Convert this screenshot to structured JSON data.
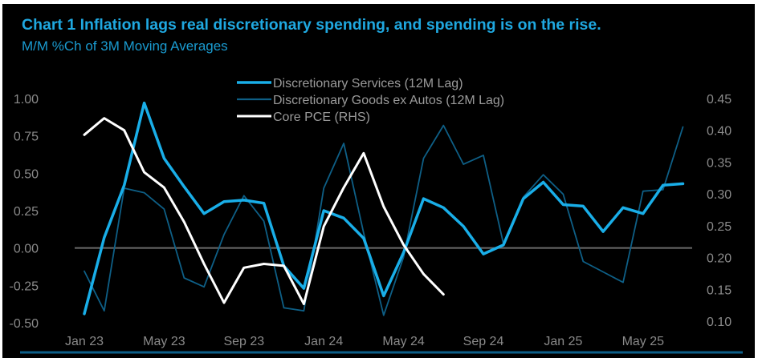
{
  "chart_data": {
    "type": "line",
    "title": "Chart 1 Inflation lags real discretionary spending, and spending is on the rise.",
    "subtitle": "M/M %Ch of 3M Moving Averages",
    "xlabel": "",
    "ylabel": "",
    "y2label": "",
    "x": [
      "Jan 23",
      "Feb 23",
      "Mar 23",
      "Apr 23",
      "May 23",
      "Jun 23",
      "Jul 23",
      "Aug 23",
      "Sep 23",
      "Oct 23",
      "Nov 23",
      "Dec 23",
      "Jan 24",
      "Feb 24",
      "Mar 24",
      "Apr 24",
      "May 24",
      "Jun 24",
      "Jul 24",
      "Aug 24",
      "Sep 24",
      "Oct 24",
      "Nov 24",
      "Dec 24",
      "Jan 25",
      "Feb 25",
      "Mar 25",
      "Apr 25",
      "May 25",
      "Jun 25",
      "Jul 25"
    ],
    "x_tick_labels": [
      "Jan 23",
      "May 23",
      "Sep 23",
      "Jan 24",
      "May 24",
      "Sep 24",
      "Jan 25",
      "May 25"
    ],
    "ylim": [
      -0.5,
      1.0
    ],
    "y_ticks": [
      "1.00",
      "0.75",
      "0.50",
      "0.25",
      "0.00",
      "-0.25",
      "-0.50"
    ],
    "y2lim": [
      0.1,
      0.45
    ],
    "y2_ticks": [
      "0.45",
      "0.40",
      "0.35",
      "0.30",
      "0.25",
      "0.20",
      "0.15",
      "0.10"
    ],
    "zero_line": true,
    "grid": false,
    "legend_position": "top-center",
    "series": [
      {
        "name": "Discretionary Services (12M Lag)",
        "axis": "left",
        "color": "#19aee8",
        "values": [
          -0.44,
          0.07,
          0.42,
          0.97,
          0.6,
          0.41,
          0.23,
          0.31,
          0.32,
          0.3,
          -0.12,
          -0.27,
          0.25,
          0.2,
          0.065,
          -0.32,
          -0.03,
          0.33,
          0.27,
          0.145,
          -0.04,
          0.02,
          0.33,
          0.44,
          0.29,
          0.28,
          0.11,
          0.27,
          0.23,
          0.42,
          0.43
        ]
      },
      {
        "name": "Discretionary Goods ex Autos (12M Lag)",
        "axis": "left",
        "color": "#0e5f86",
        "values": [
          -0.155,
          -0.42,
          0.4,
          0.37,
          0.26,
          -0.2,
          -0.26,
          0.09,
          0.35,
          0.18,
          -0.4,
          -0.42,
          0.4,
          0.7,
          0.1,
          -0.45,
          -0.06,
          0.6,
          0.82,
          0.56,
          0.62,
          0.03,
          0.34,
          0.49,
          0.36,
          -0.09,
          -0.16,
          -0.23,
          0.38,
          0.39,
          0.81
        ]
      },
      {
        "name": "Core PCE (RHS)",
        "axis": "right",
        "color": "#ffffff",
        "values": [
          0.393,
          0.419,
          0.4,
          0.334,
          0.31,
          0.256,
          0.19,
          0.129,
          0.184,
          0.19,
          0.187,
          0.127,
          0.249,
          0.31,
          0.364,
          0.28,
          0.22,
          0.174,
          0.142
        ]
      }
    ]
  }
}
